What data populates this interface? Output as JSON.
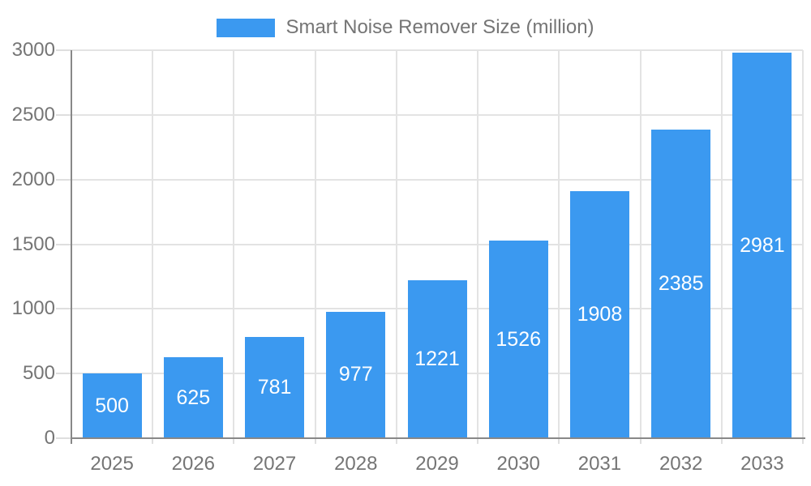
{
  "legend": {
    "label": "Smart Noise Remover Size (million)",
    "swatch_color": "#3B99F0"
  },
  "chart_data": {
    "type": "bar",
    "title": "",
    "xlabel": "",
    "ylabel": "",
    "categories": [
      "2025",
      "2026",
      "2027",
      "2028",
      "2029",
      "2030",
      "2031",
      "2032",
      "2033"
    ],
    "series": [
      {
        "name": "Smart Noise Remover Size (million)",
        "values": [
          500,
          625,
          781,
          977,
          1221,
          1526,
          1908,
          2385,
          2981
        ]
      }
    ],
    "value_labels_shown": true,
    "ylim": [
      0,
      3000
    ],
    "yticks": [
      0,
      500,
      1000,
      1500,
      2000,
      2500,
      3000
    ],
    "grid": true,
    "legend_position": "top"
  },
  "colors": {
    "bar": "#3B99F0",
    "axis_line": "#888888",
    "gridline": "#e3e3e3",
    "tick_mark": "#dedede",
    "tick_text": "#757575",
    "value_text": "#ffffff",
    "background": "#ffffff"
  }
}
